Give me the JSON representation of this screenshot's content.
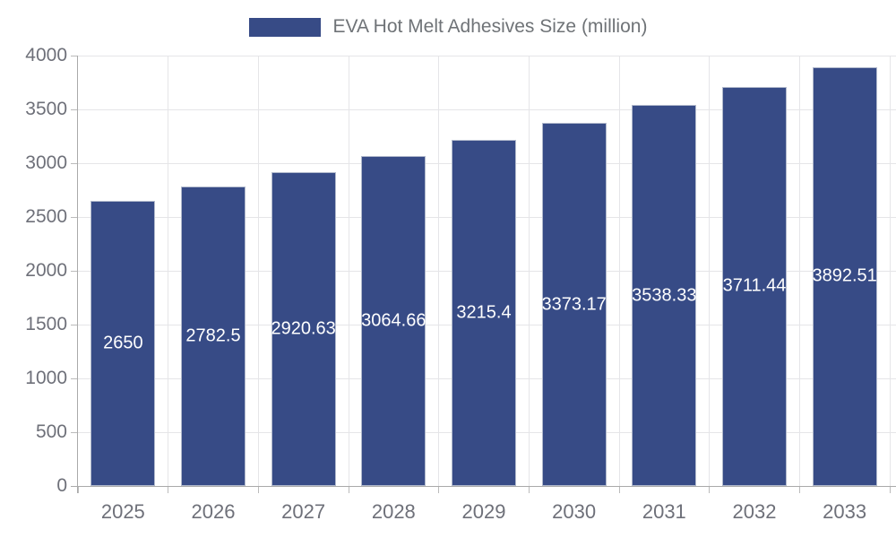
{
  "legend": {
    "label": "EVA Hot Melt Adhesives Size (million)"
  },
  "colors": {
    "bar": "#374B86",
    "bar_border": "#C7CCD8",
    "grid": "#E5E5E8",
    "axis": "#AAAAAA",
    "tick_mark": "#BBBBBB",
    "axis_text": "#6E7079",
    "value_label": "#FFFFFF"
  },
  "chart_data": {
    "type": "bar",
    "title": "EVA Hot Melt Adhesives Size (million)",
    "xlabel": "",
    "ylabel": "",
    "categories": [
      "2025",
      "2026",
      "2027",
      "2028",
      "2029",
      "2030",
      "2031",
      "2032",
      "2033"
    ],
    "values": [
      2650,
      2782.5,
      2920.63,
      3064.66,
      3215.4,
      3373.17,
      3538.33,
      3711.44,
      3892.51
    ],
    "value_labels": [
      "2650",
      "2782.5",
      "2920.63",
      "3064.66",
      "3215.4",
      "3373.17",
      "3538.33",
      "3711.44",
      "3892.51"
    ],
    "ylim": [
      0,
      4000
    ],
    "ytick_step": 500,
    "ytick_labels": [
      "0",
      "500",
      "1000",
      "1500",
      "2000",
      "2500",
      "3000",
      "3500",
      "4000"
    ],
    "grid": true,
    "legend_position": "top-center",
    "value_label_position": "middle-of-bar"
  }
}
